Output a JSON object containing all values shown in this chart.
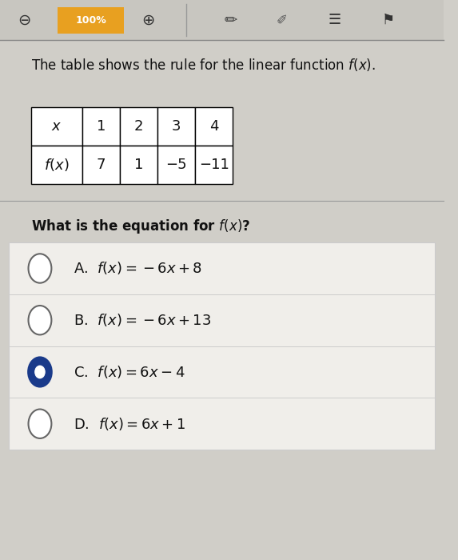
{
  "bg_color": "#d0cec8",
  "toolbar_bg": "#c8c6c0",
  "toolbar_percent": "100%",
  "title_text": "The table shows the rule for the linear function $f(x)$.",
  "table_x_label": "$x$",
  "table_x_values": [
    "1",
    "2",
    "3",
    "4"
  ],
  "table_fx_label": "$f(x)$",
  "table_fx_values": [
    "7",
    "1",
    "−5",
    "−11"
  ],
  "question_text": "What is the equation for $f(x)$?",
  "options": [
    {
      "label": "A.",
      "text": "$f(x) = -6x + 8$",
      "selected": false
    },
    {
      "label": "B.",
      "text": "$f(x) = -6x + 13$",
      "selected": false
    },
    {
      "label": "C.",
      "text": "$f(x) = 6x - 4$",
      "selected": true
    },
    {
      "label": "D.",
      "text": "$f(x) = 6x + 1$",
      "selected": false
    }
  ],
  "option_bg": "#f0eeea",
  "selected_color": "#1a3a8a",
  "text_color": "#111111",
  "font_size_title": 12,
  "font_size_table": 13,
  "font_size_question": 12,
  "font_size_options": 13
}
